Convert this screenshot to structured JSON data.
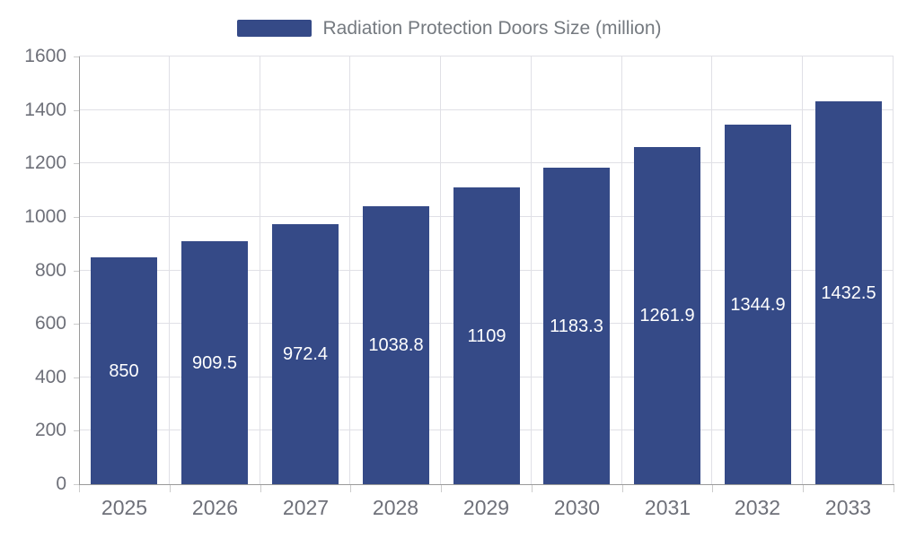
{
  "legend": {
    "label": "Radiation Protection Doors Size (million)"
  },
  "chart_data": {
    "type": "bar",
    "title": "Radiation Protection Doors Size (million)",
    "categories": [
      "2025",
      "2026",
      "2027",
      "2028",
      "2029",
      "2030",
      "2031",
      "2032",
      "2033"
    ],
    "values": [
      850,
      909.5,
      972.4,
      1038.8,
      1109,
      1183.3,
      1261.9,
      1344.9,
      1432.5
    ],
    "value_labels": [
      "850",
      "909.5",
      "972.4",
      "1038.8",
      "1109",
      "1183.3",
      "1261.9",
      "1344.9",
      "1432.5"
    ],
    "xlabel": "",
    "ylabel": "",
    "ylim": [
      0,
      1600
    ],
    "ytick_step": 200,
    "ytick_labels": [
      "0",
      "200",
      "400",
      "600",
      "800",
      "1000",
      "1200",
      "1400",
      "1600"
    ],
    "grid": true,
    "legend_position": "top-center",
    "value_label_position": "inside-center",
    "colors": {
      "bar": "#354A87",
      "bar_value_label": "#FFFFFF",
      "axis_text": "#6E7079",
      "legend_text": "#757a80",
      "grid_line": "#E0E0E6",
      "axis_line": "#999999",
      "tick_line": "#CCCCCC",
      "background": "#FFFFFF"
    }
  }
}
